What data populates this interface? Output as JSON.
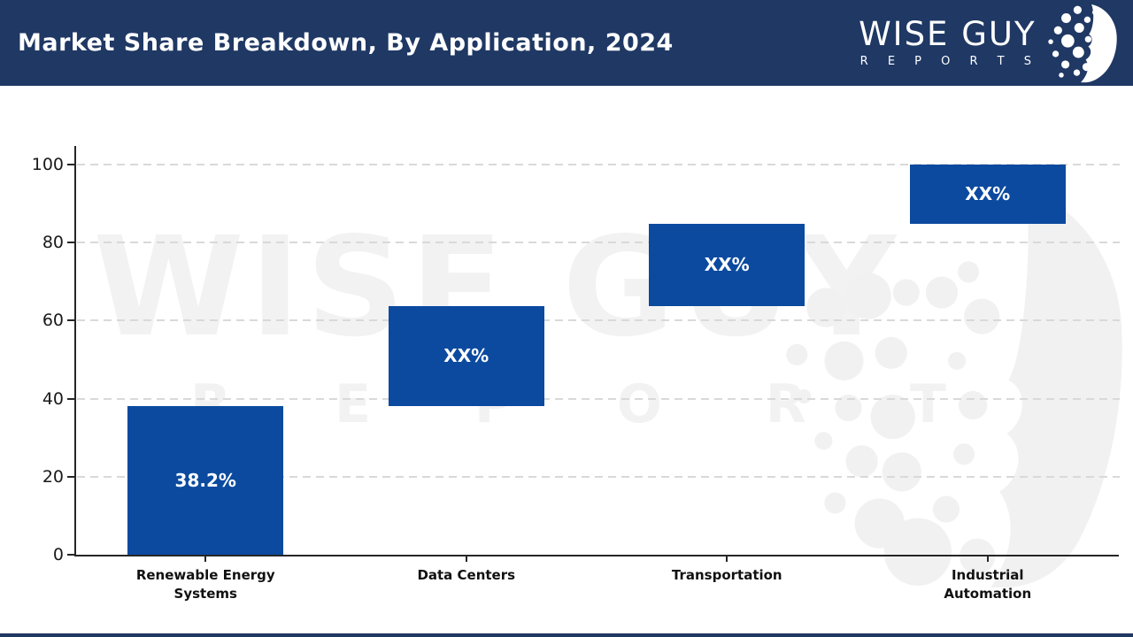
{
  "header": {
    "title": "Market Share Breakdown, By Application, 2024",
    "bg_color": "#1f3864",
    "logo": {
      "line1": "WISE GUY",
      "line2": "R E P O R T S"
    }
  },
  "watermark": {
    "line1": "WISE GUY",
    "line2": "R E P O R T S"
  },
  "chart_data": {
    "type": "bar",
    "subtype": "waterfall",
    "title": "Market Share Breakdown, By Application, 2024",
    "categories": [
      "Renewable Energy Systems",
      "Data Centers",
      "Transportation",
      "Industrial Automation"
    ],
    "bars": [
      {
        "category": "Renewable Energy Systems",
        "start": 0,
        "end": 38.2,
        "label": "38.2%"
      },
      {
        "category": "Data Centers",
        "start": 38.2,
        "end": 63.7,
        "label": "XX%"
      },
      {
        "category": "Transportation",
        "start": 63.7,
        "end": 84.9,
        "label": "XX%"
      },
      {
        "category": "Industrial Automation",
        "start": 84.9,
        "end": 100,
        "label": "XX%"
      }
    ],
    "y_ticks": [
      0,
      20,
      40,
      60,
      80,
      100
    ],
    "ylim": [
      0,
      100
    ],
    "xlabel": "",
    "ylabel": "",
    "legend": "none",
    "grid": "horizontal-dashed",
    "bar_color": "#0b4a9f",
    "bar_label_color": "#ffffff",
    "axis_color": "#262626",
    "grid_color": "#d9d9d9",
    "watermark_color": "#f2f2f2"
  }
}
